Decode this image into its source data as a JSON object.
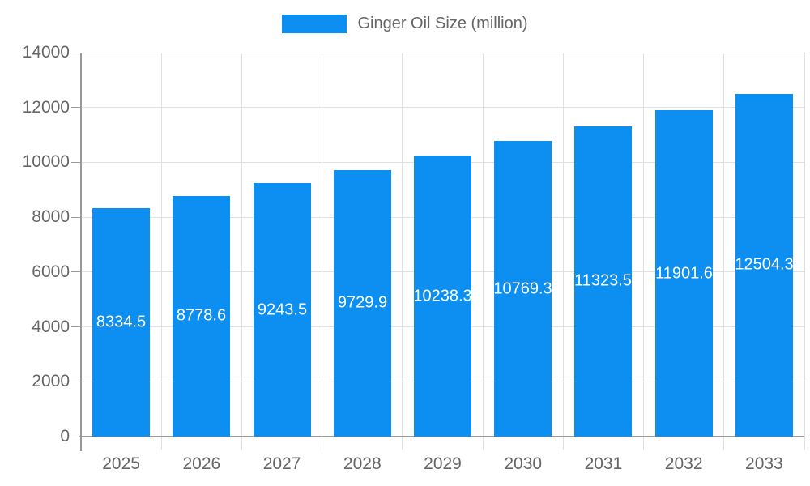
{
  "chart_data": {
    "type": "bar",
    "title": "",
    "legend": "Ginger Oil Size (million)",
    "legend_position": "top",
    "categories": [
      "2025",
      "2026",
      "2027",
      "2028",
      "2029",
      "2030",
      "2031",
      "2032",
      "2033"
    ],
    "values": [
      8334.5,
      8778.6,
      9243.5,
      9729.9,
      10238.3,
      10769.3,
      11323.5,
      11901.6,
      12504.3
    ],
    "value_labels": [
      "8334.5",
      "8778.6",
      "9243.5",
      "9729.9",
      "10238.3",
      "10769.3",
      "11323.5",
      "11901.6",
      "12504.3"
    ],
    "xlabel": "",
    "ylabel": "",
    "ylim": [
      0,
      14000
    ],
    "ytick_step": 2000,
    "ytick_labels": [
      "0",
      "2000",
      "4000",
      "6000",
      "8000",
      "10000",
      "12000",
      "14000"
    ],
    "grid": true,
    "colors": {
      "bar": "#0d8ff2",
      "bar_value_label": "#ffffff",
      "axis_text": "#666666",
      "axis_line": "#999999",
      "gridline": "#e0e0e0",
      "background": "#ffffff"
    }
  }
}
